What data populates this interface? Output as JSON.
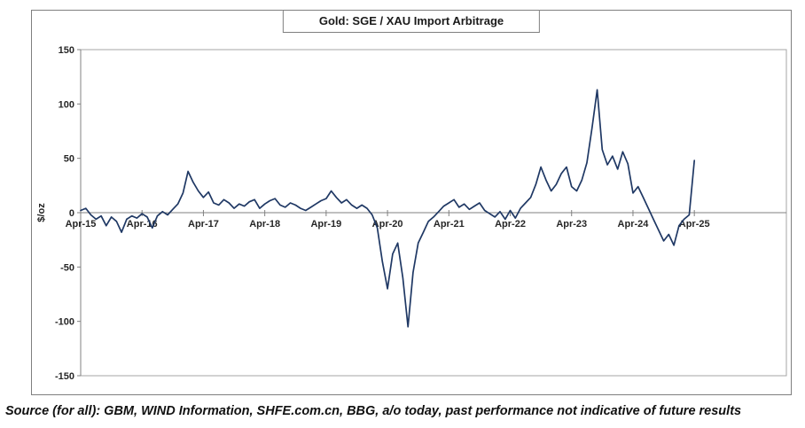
{
  "page": {
    "background": "#ffffff",
    "source_note": "Source (for all): GBM, WIND Information, SHFE.com.cn, BBG, a/o today, past performance not indicative of future results"
  },
  "chart_data": {
    "type": "line",
    "title": "Gold: SGE / XAU Import Arbitrage",
    "xlabel": "",
    "ylabel": "$/oz",
    "ylim": [
      -150,
      150
    ],
    "yticks": [
      150,
      100,
      50,
      0,
      -50,
      -100,
      -150
    ],
    "x_tick_labels": [
      "Apr-15",
      "Apr-16",
      "Apr-17",
      "Apr-18",
      "Apr-19",
      "Apr-20",
      "Apr-21",
      "Apr-22",
      "Apr-23",
      "Apr-24",
      "Apr-25"
    ],
    "x_tick_month_index": [
      0,
      12,
      24,
      36,
      48,
      60,
      72,
      84,
      96,
      108,
      120
    ],
    "x_domain_months": [
      0,
      138
    ],
    "grid": "zero-axis-line-only",
    "legend": "none",
    "line_color": "#1f3864",
    "axis_color": "#808080",
    "plot_border_color": "#a6a6a6",
    "series": [
      {
        "name": "SGE / XAU import arbitrage",
        "x_unit": "months since Apr-2015 (monthly estimates read from chart)",
        "x_start_label": "Apr-15",
        "x_end_label": "Apr-25",
        "values": [
          2,
          4,
          -2,
          -6,
          -3,
          -12,
          -4,
          -8,
          -18,
          -6,
          -3,
          -5,
          -1,
          -4,
          -14,
          -3,
          1,
          -2,
          3,
          8,
          18,
          38,
          28,
          20,
          14,
          19,
          9,
          7,
          12,
          9,
          4,
          8,
          6,
          10,
          12,
          4,
          8,
          11,
          13,
          7,
          5,
          9,
          7,
          4,
          2,
          5,
          8,
          11,
          13,
          20,
          14,
          9,
          12,
          7,
          4,
          7,
          4,
          -2,
          -14,
          -45,
          -70,
          -38,
          -28,
          -60,
          -105,
          -55,
          -28,
          -18,
          -8,
          -4,
          1,
          6,
          9,
          12,
          5,
          8,
          3,
          6,
          9,
          2,
          -1,
          -4,
          1,
          -6,
          2,
          -5,
          4,
          9,
          14,
          26,
          42,
          30,
          20,
          26,
          36,
          42,
          24,
          20,
          30,
          46,
          78,
          113,
          58,
          44,
          52,
          40,
          56,
          45,
          18,
          24,
          14,
          4,
          -6,
          -16,
          -26,
          -20,
          -30,
          -12,
          -6,
          -2,
          48
        ]
      }
    ]
  }
}
